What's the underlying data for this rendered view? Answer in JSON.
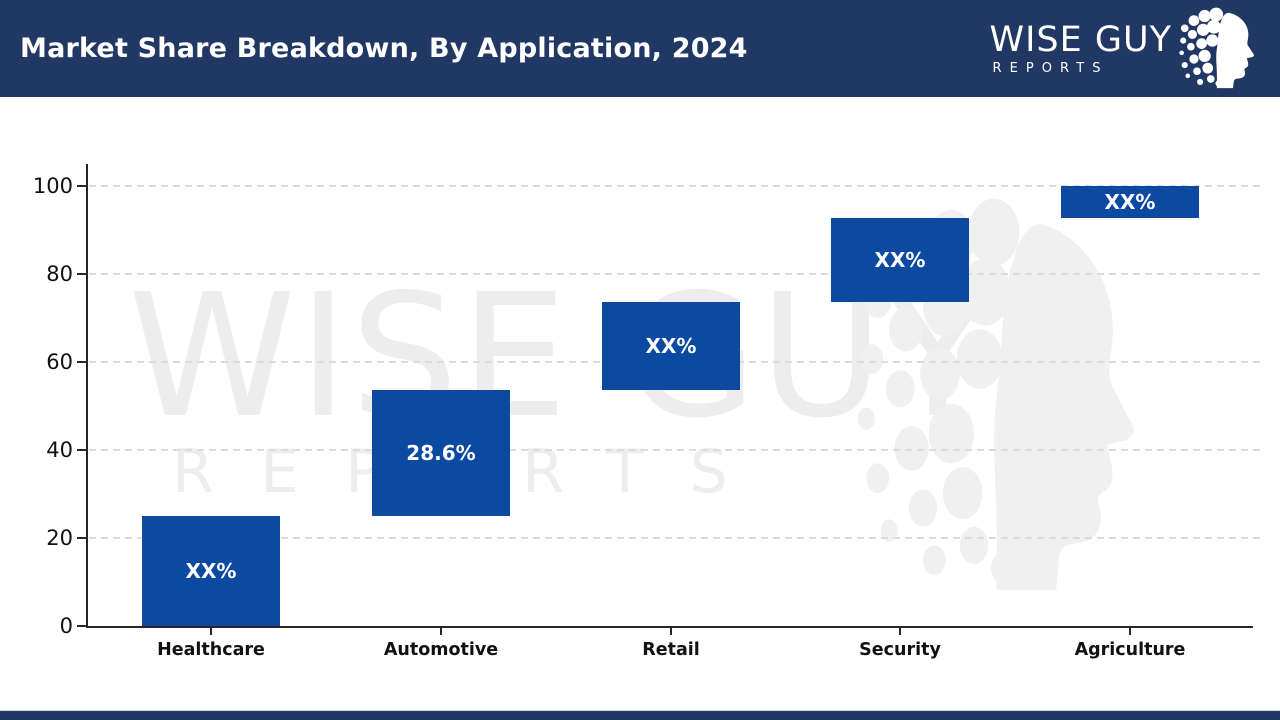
{
  "page": {
    "background": "#ffffff",
    "accent_navy": "#213764"
  },
  "header": {
    "title": "Market Share Breakdown, By Application, 2024",
    "logo": {
      "line1": "WISE GUY",
      "line2": "REPORTS"
    }
  },
  "watermark": {
    "line1": "WISE GUY",
    "line2": "REPORTS"
  },
  "chart_data": {
    "type": "bar",
    "subtype": "waterfall",
    "title": "Market Share Breakdown, By Application, 2024",
    "categories": [
      "Healthcare",
      "Automotive",
      "Retail",
      "Security",
      "Agriculture"
    ],
    "bars": [
      {
        "category": "Healthcare",
        "start": 0,
        "end": 25,
        "label": "XX%"
      },
      {
        "category": "Automotive",
        "start": 25,
        "end": 53.6,
        "label": "28.6%"
      },
      {
        "category": "Retail",
        "start": 53.6,
        "end": 73.6,
        "label": "XX%"
      },
      {
        "category": "Security",
        "start": 73.6,
        "end": 92.7,
        "label": "XX%"
      },
      {
        "category": "Agriculture",
        "start": 92.7,
        "end": 100,
        "label": "XX%"
      }
    ],
    "y_ticks": [
      0,
      20,
      40,
      60,
      80,
      100
    ],
    "ylim": [
      0,
      105
    ],
    "xlabel": "",
    "ylabel": "",
    "bar_color": "#0c4aa1",
    "bar_label_color": "#ffffff",
    "grid": "horizontal-dashed",
    "legend": "none"
  }
}
